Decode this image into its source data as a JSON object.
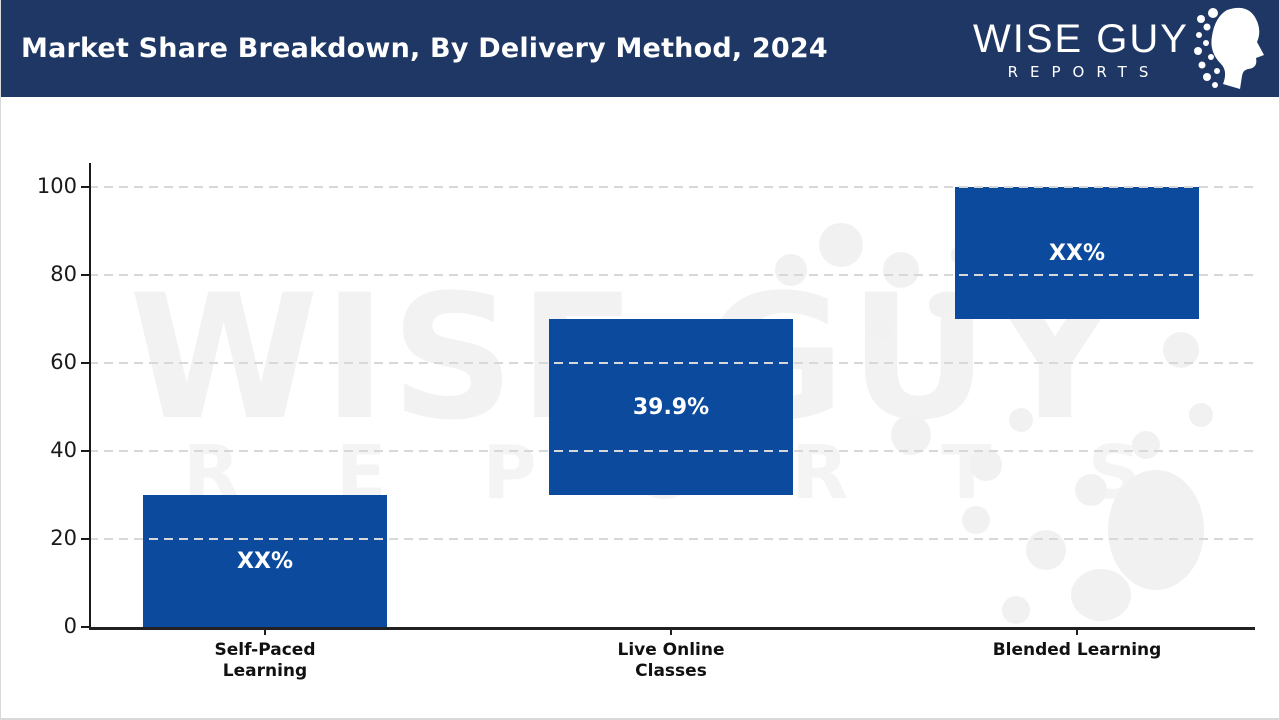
{
  "header": {
    "title": "Market Share Breakdown, By Delivery Method, 2024",
    "bg_color": "#1F3765",
    "logo": {
      "line1": "WISE GUY",
      "line2": "REPORTS"
    }
  },
  "watermark": {
    "line1": "WISE GUY",
    "line2": "REPORTS"
  },
  "chart_data": {
    "type": "bar",
    "subtype": "waterfall-floating-bars",
    "title": "Market Share Breakdown, By Delivery Method, 2024",
    "categories": [
      [
        "Self-Paced",
        "Learning"
      ],
      [
        "Live Online",
        "Classes"
      ],
      [
        "Blended Learning"
      ]
    ],
    "segments": [
      {
        "start": 0,
        "end": 30,
        "label": "XX%"
      },
      {
        "start": 30,
        "end": 69.9,
        "label": "39.9%"
      },
      {
        "start": 69.9,
        "end": 100,
        "label": "XX%"
      }
    ],
    "values": [
      30,
      39.9,
      30.1
    ],
    "yticks": [
      0,
      20,
      40,
      60,
      80,
      100
    ],
    "ylim": [
      0,
      100
    ],
    "xlabel": "",
    "ylabel": "",
    "bar_color": "#0C4A9E",
    "grid": "horizontal-dashed",
    "legend": "none"
  }
}
